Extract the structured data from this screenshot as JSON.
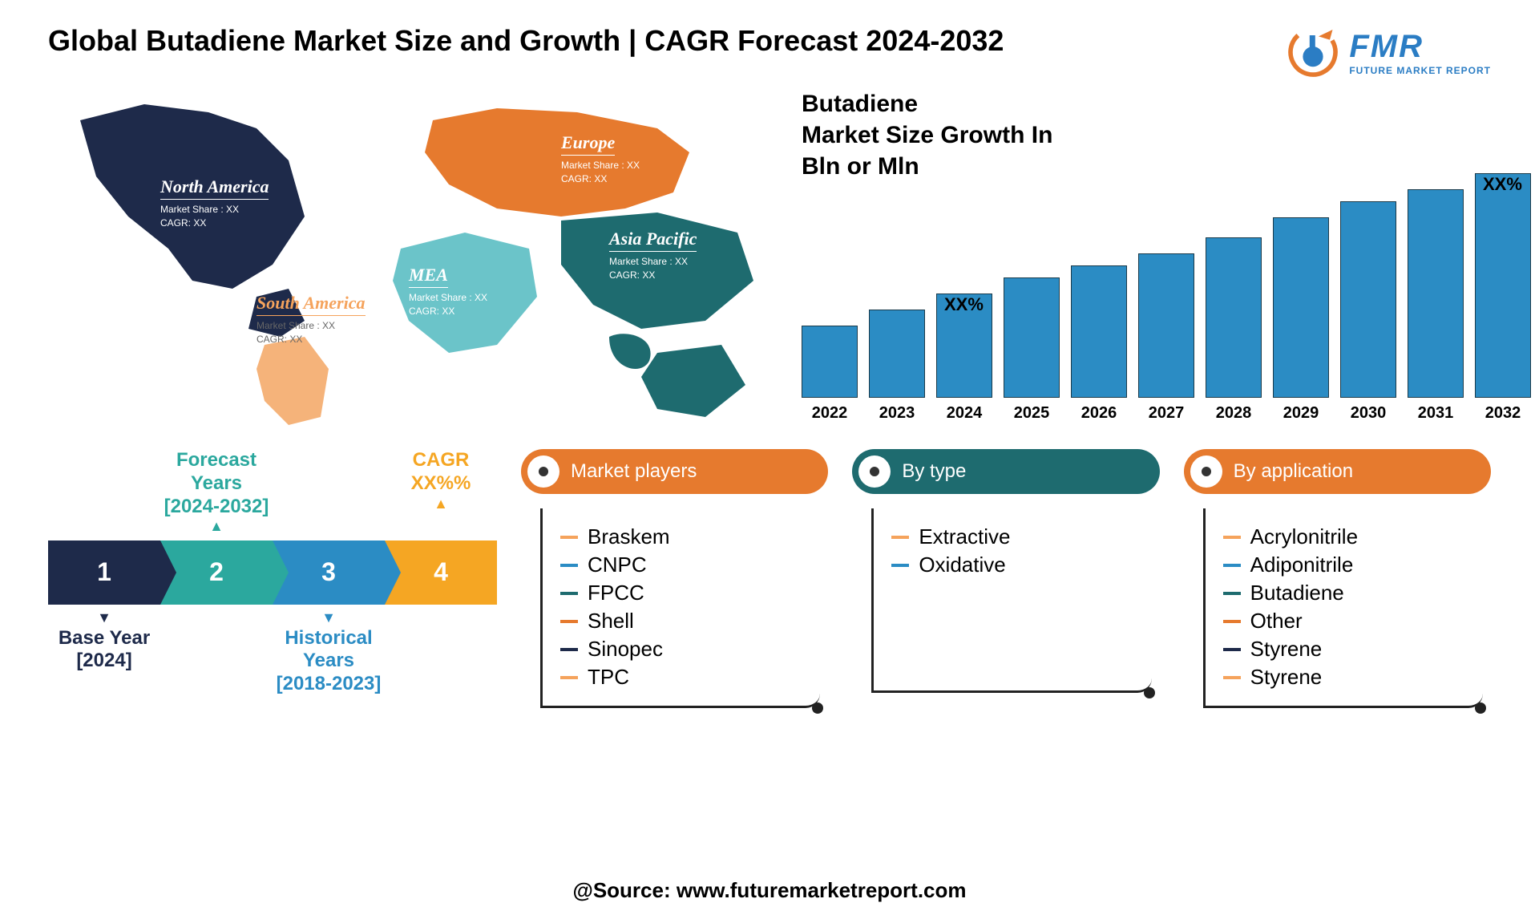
{
  "title": "Global Butadiene  Market Size and Growth | CAGR Forecast 2024-2032",
  "logo": {
    "main": "FMR",
    "sub": "FUTURE MARKET REPORT",
    "icon_color": "#e67a2e",
    "text_color": "#2b7dc4"
  },
  "source": "@Source: www.futuremarketreport.com",
  "map": {
    "regions": [
      {
        "name": "North America",
        "share": "Market Share : XX",
        "cagr": "CAGR: XX",
        "color": "#1e2a4a"
      },
      {
        "name": "South America",
        "share": "Market Share : XX",
        "cagr": "CAGR: XX",
        "color": "#f5b37a"
      },
      {
        "name": "Europe",
        "share": "Market Share : XX",
        "cagr": "CAGR: XX",
        "color": "#e67a2e"
      },
      {
        "name": "Asia Pacific",
        "share": "Market Share : XX",
        "cagr": "CAGR: XX",
        "color": "#1e6b6f"
      },
      {
        "name": "MEA",
        "share": "Market Share : XX",
        "cagr": "CAGR: XX",
        "color": "#6bc4c9"
      }
    ]
  },
  "bar_chart": {
    "title": "Butadiene\nMarket Size Growth In\nBln or Mln",
    "type": "bar",
    "years": [
      "2022",
      "2023",
      "2024",
      "2025",
      "2026",
      "2027",
      "2028",
      "2029",
      "2030",
      "2031",
      "2032"
    ],
    "values": [
      90,
      110,
      130,
      150,
      165,
      180,
      200,
      225,
      245,
      260,
      280
    ],
    "max_value": 280,
    "bar_color": "#2b8cc4",
    "border_color": "#1a3a4a",
    "label_fontsize": 20,
    "annotations": [
      {
        "idx": 2,
        "text": "XX%"
      },
      {
        "idx": 10,
        "text": "XX%"
      }
    ]
  },
  "timeline": {
    "segments": [
      {
        "n": "1",
        "color": "#1e2a4a"
      },
      {
        "n": "2",
        "color": "#2ba89e"
      },
      {
        "n": "3",
        "color": "#2b8cc4"
      },
      {
        "n": "4",
        "color": "#f5a623"
      }
    ],
    "labels": {
      "base": {
        "text": "Base Year",
        "sub": "[2024]",
        "color": "#1e2a4a"
      },
      "forecast": {
        "text": "Forecast Years",
        "sub": "[2024-2032]",
        "color": "#2ba89e"
      },
      "historical": {
        "text": "Historical Years",
        "sub": "[2018-2023]",
        "color": "#2b8cc4"
      },
      "cagr": {
        "text": "CAGR",
        "sub": "XX%%",
        "color": "#f5a623"
      }
    }
  },
  "pills": [
    {
      "title": "Market players",
      "header_color": "#e67a2e",
      "items": [
        {
          "label": "Braskem",
          "color": "#f5a35c"
        },
        {
          "label": "CNPC",
          "color": "#2b8cc4"
        },
        {
          "label": "FPCC",
          "color": "#1e6b6f"
        },
        {
          "label": "Shell",
          "color": "#e67a2e"
        },
        {
          "label": "Sinopec",
          "color": "#1e2a4a"
        },
        {
          "label": "TPC",
          "color": "#f5a35c"
        }
      ]
    },
    {
      "title": "By type",
      "header_color": "#1e6b6f",
      "items": [
        {
          "label": "Extractive",
          "color": "#f5a35c"
        },
        {
          "label": "Oxidative",
          "color": "#2b8cc4"
        }
      ]
    },
    {
      "title": "By application",
      "header_color": "#e67a2e",
      "items": [
        {
          "label": "Acrylonitrile",
          "color": "#f5a35c"
        },
        {
          "label": "Adiponitrile",
          "color": "#2b8cc4"
        },
        {
          "label": "Butadiene",
          "color": "#1e6b6f"
        },
        {
          "label": "Other",
          "color": "#e67a2e"
        },
        {
          "label": "Styrene",
          "color": "#1e2a4a"
        },
        {
          "label": "Styrene",
          "color": "#f5a35c"
        }
      ]
    }
  ]
}
